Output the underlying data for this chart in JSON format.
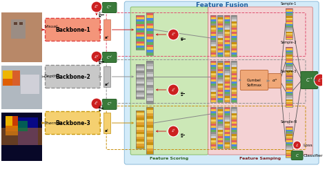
{
  "title": "Feature Fusion",
  "backbone_labels": [
    "Backbone-1",
    "Backbone-2",
    "Backbone-3"
  ],
  "backbone_colors": [
    "#f4957a",
    "#c8c8c8",
    "#f5d070"
  ],
  "backbone_border_colors": [
    "#e04040",
    "#909090",
    "#c8980a"
  ],
  "source_labels": [
    "Visual",
    "Depth",
    "Thermal"
  ],
  "feature_fusion_bg": "#c8e8f8",
  "feature_scoring_bg": "#d0f0b8",
  "feature_sampling_bg": "#fad8d8",
  "sample_labels": [
    "Sample-1",
    "Sample-2",
    "Sample-3",
    "Sample-N"
  ],
  "legend_loss_color": "#cc2020",
  "legend_classifier_color": "#3a7a3a",
  "gumbel_color": "#f0a878",
  "bar_v": [
    "#e06060",
    "#f5c040",
    "#5088e0",
    "#60b060",
    "#e06060",
    "#f5c040",
    "#5088e0",
    "#60b060",
    "#e06060",
    "#f5c040",
    "#5088e0",
    "#60b060",
    "#e06060",
    "#f5c040",
    "#5088e0",
    "#60b060"
  ],
  "bar_d": [
    "#909090",
    "#b0b0b0",
    "#d0d0d0",
    "#909090",
    "#b0b0b0",
    "#d0d0d0",
    "#909090",
    "#b0b0b0",
    "#d0d0d0",
    "#909090",
    "#b0b0b0",
    "#d0d0d0",
    "#909090",
    "#b0b0b0",
    "#d0d0d0",
    "#909090"
  ],
  "bar_t": [
    "#c89010",
    "#f0d060",
    "#e0a030",
    "#c89010",
    "#f0d060",
    "#e0a030",
    "#c89010",
    "#f0d060",
    "#e0a030",
    "#c89010",
    "#f0d060",
    "#e0a030",
    "#c89010",
    "#f0d060",
    "#e0a030",
    "#c89010"
  ],
  "bar_mix": [
    "#e06060",
    "#f5c040",
    "#5088e0",
    "#60b060",
    "#909090",
    "#c89010",
    "#f0d060",
    "#e0a030",
    "#e06060",
    "#f5c040",
    "#5088e0",
    "#60b060",
    "#909090",
    "#b0b0b0",
    "#d0d0d0",
    "#c89010",
    "#f0d060",
    "#e0a030",
    "#e06060",
    "#f5c040"
  ]
}
